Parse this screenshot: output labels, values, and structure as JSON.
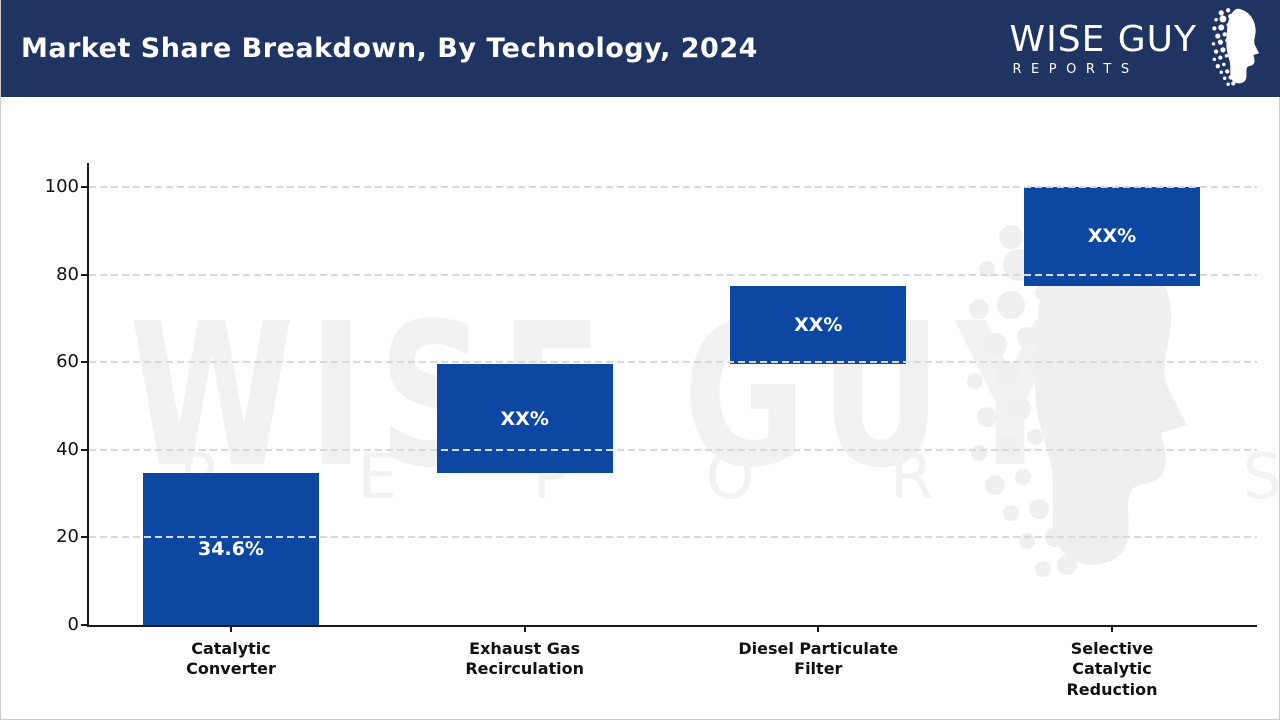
{
  "header": {
    "title": "Market Share Breakdown, By Technology, 2024",
    "logo": {
      "line1": "WISE GUY",
      "line2": "REPORTS"
    },
    "bg_color": "#203462"
  },
  "watermark": {
    "line1": "WISE GUY",
    "line2": "R E P O R T S"
  },
  "chart_data": {
    "type": "waterfall",
    "title": "Market Share Breakdown, By Technology, 2024",
    "categories": [
      "Catalytic Converter",
      "Exhaust Gas Recirculation",
      "Diesel Particulate Filter",
      "Selective Catalytic Reduction"
    ],
    "segments": [
      {
        "category": "Catalytic Converter",
        "lines": [
          "Catalytic",
          "Converter"
        ],
        "start": 0,
        "end": 34.6,
        "value_label": "34.6%"
      },
      {
        "category": "Exhaust Gas Recirculation",
        "lines": [
          "Exhaust Gas",
          "Recirculation"
        ],
        "start": 34.6,
        "end": 59.5,
        "value_label": "XX%"
      },
      {
        "category": "Diesel Particulate Filter",
        "lines": [
          "Diesel Particulate",
          "Filter"
        ],
        "start": 59.5,
        "end": 77.5,
        "value_label": "XX%"
      },
      {
        "category": "Selective Catalytic Reduction",
        "lines": [
          "Selective",
          "Catalytic",
          "Reduction"
        ],
        "start": 77.5,
        "end": 100,
        "value_label": "XX%"
      }
    ],
    "y_ticks": [
      0,
      20,
      40,
      60,
      80,
      100
    ],
    "ylim": [
      0,
      105
    ],
    "xlabel": "",
    "ylabel": "",
    "grid": "horizontal dashed",
    "legend": "none",
    "bar_color": "#0c47a1",
    "grid_color": "#d9d9d9",
    "axis_color": "#1a1a1a",
    "value_label_color": "#ffffff"
  }
}
